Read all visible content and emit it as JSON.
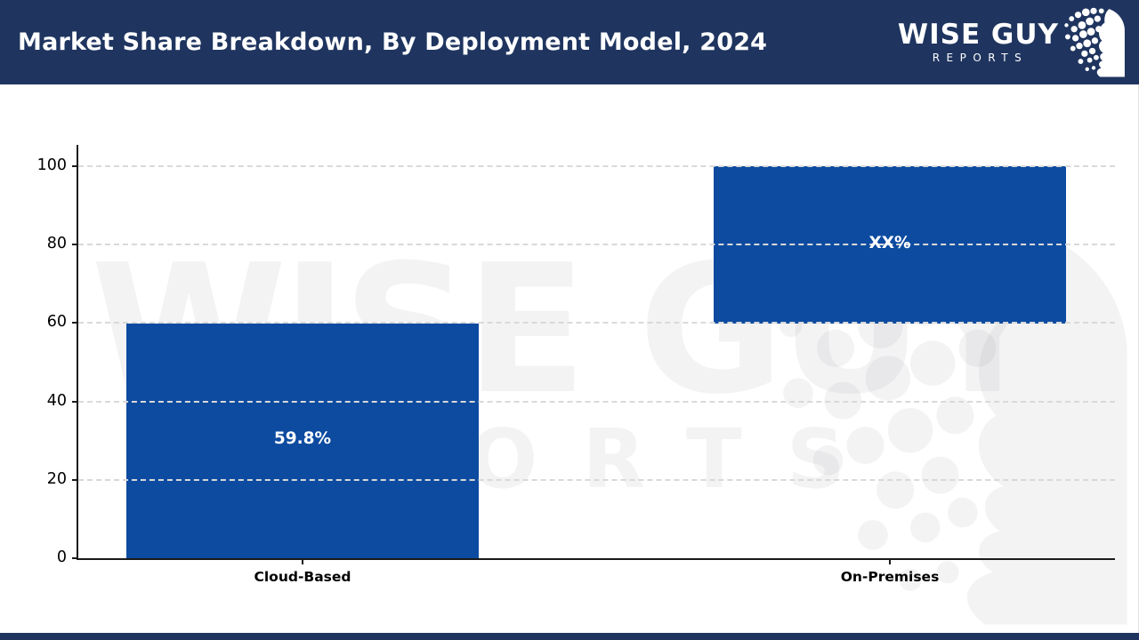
{
  "header": {
    "logo": {
      "line1": "WISE GUY",
      "line2": "REPORTS"
    }
  },
  "colors": {
    "header_bg": "#1F3560",
    "footer_bg": "#1F3560",
    "bar": "#0C4BA0",
    "gridline": "#d9d9d9",
    "axis": "#1a1a1a",
    "bar_label_text": "#ffffff",
    "title_text": "#ffffff"
  },
  "chart_data": {
    "type": "bar",
    "title": "Market Share Breakdown, By Deployment Model, 2024",
    "categories": [
      "Cloud-Based",
      "On-Premises"
    ],
    "bars": [
      {
        "category": "Cloud-Based",
        "start": 0,
        "end": 59.8,
        "label": "59.8%"
      },
      {
        "category": "On-Premises",
        "start": 59.8,
        "end": 100,
        "label": "XX%"
      }
    ],
    "ylim": [
      0,
      100
    ],
    "yticks": [
      0,
      20,
      40,
      60,
      80,
      100
    ],
    "grid": "horizontal-dashed",
    "legend": "none",
    "xlabel": "",
    "ylabel": ""
  }
}
